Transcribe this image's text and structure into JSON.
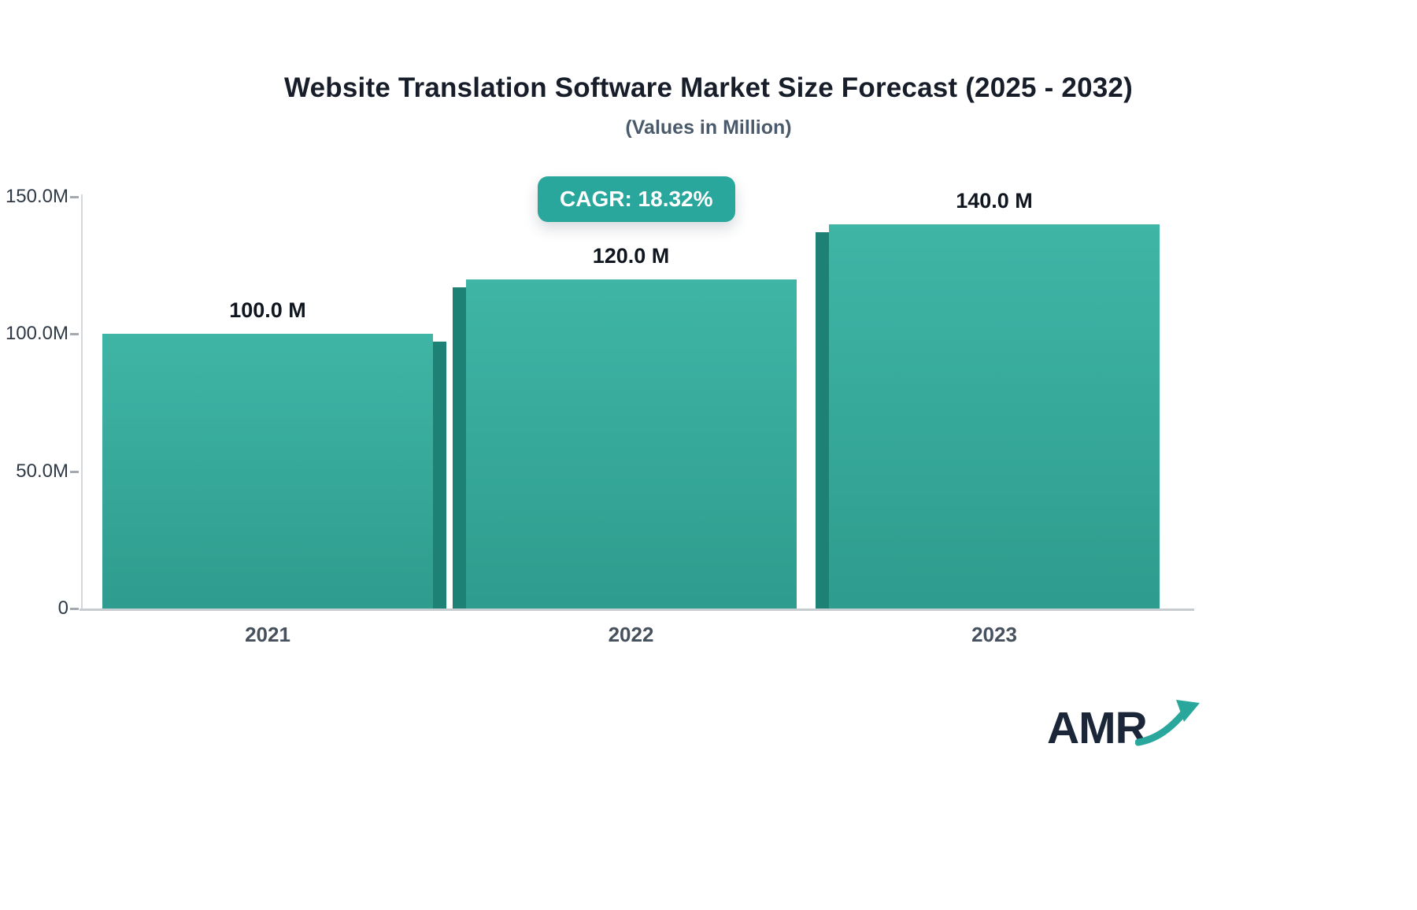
{
  "title": "Website Translation Software Market Size Forecast (2025 - 2032)",
  "subtitle": "(Values in Million)",
  "cagr_badge": "CAGR: 18.32%",
  "logo": {
    "text": "AMR"
  },
  "chart_data": {
    "type": "bar",
    "title": "Website Translation Software Market Size Forecast (2025 - 2032)",
    "subtitle": "(Values in Million)",
    "annotation": "CAGR: 18.32%",
    "categories": [
      "2021",
      "2022",
      "2023"
    ],
    "values": [
      100.0,
      120.0,
      140.0
    ],
    "bar_labels": [
      "100.0 M",
      "120.0 M",
      "140.0 M"
    ],
    "xlabel": "",
    "ylabel": "",
    "ylim": [
      0,
      150
    ],
    "yticks": [
      {
        "value": 150,
        "label": "150.0M"
      },
      {
        "value": 100,
        "label": "100.0M"
      },
      {
        "value": 50,
        "label": "50.0M"
      },
      {
        "value": 0,
        "label": "0"
      }
    ],
    "grid": false,
    "legend": "none",
    "bar_color_top": "#3fb5a6",
    "bar_color_bottom": "#2e9c8e",
    "bar_side_color": "#1d8176",
    "accent_color": "#2aa79c",
    "logo_color": "#1b2738"
  }
}
